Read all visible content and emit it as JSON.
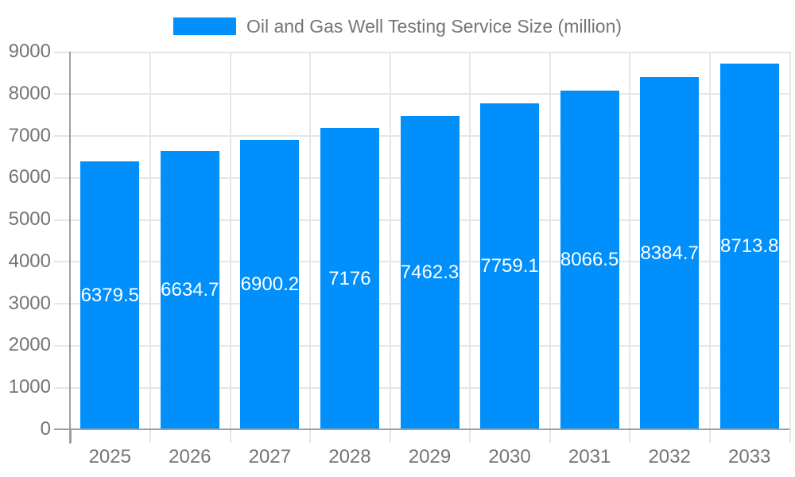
{
  "chart_data": {
    "type": "bar",
    "title": "Oil and Gas Well Testing Service Size (million)",
    "categories": [
      "2025",
      "2026",
      "2027",
      "2028",
      "2029",
      "2030",
      "2031",
      "2032",
      "2033"
    ],
    "series": [
      {
        "name": "Oil and Gas Well Testing Service Size (million)",
        "values": [
          6379.5,
          6634.7,
          6900.2,
          7176,
          7462.3,
          7759.1,
          8066.5,
          8384.7,
          8713.8
        ],
        "labels": [
          "6379.5",
          "6634.7",
          "6900.2",
          "7176",
          "7462.3",
          "7759.1",
          "8066.5",
          "8384.7",
          "8713.8"
        ]
      }
    ],
    "xlabel": "",
    "ylabel": "",
    "ylim": [
      0,
      9000
    ],
    "ytick_step": 1000,
    "ytick_labels": [
      "0",
      "1000",
      "2000",
      "3000",
      "4000",
      "5000",
      "6000",
      "7000",
      "8000",
      "9000"
    ],
    "grid": true,
    "legend_position": "top-center",
    "colors": {
      "bar": "#008FFB",
      "grid": "#E6E6E6",
      "axis_line": "#9E9E9E",
      "axis_text": "#757575",
      "value_text": "#FFFFFF",
      "background": "#FFFFFF"
    }
  }
}
